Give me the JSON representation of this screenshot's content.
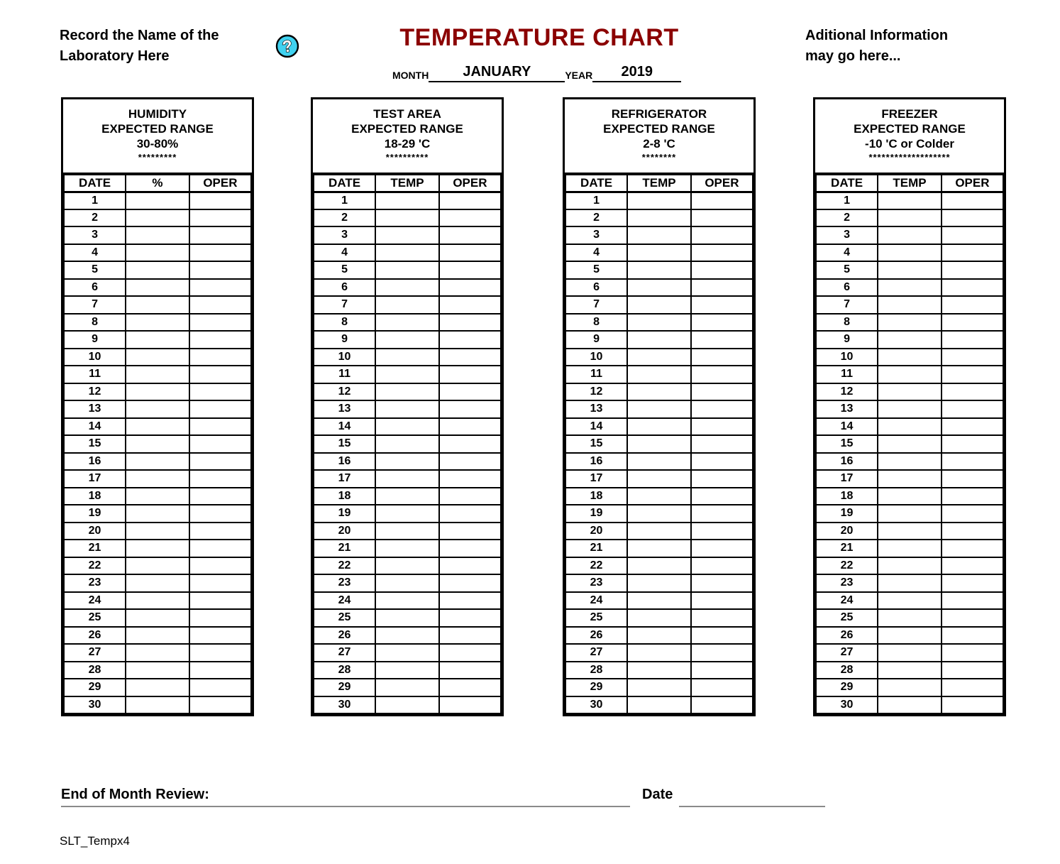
{
  "header": {
    "lab_name_line1": "Record the Name of the",
    "lab_name_line2": "Laboratory Here",
    "help_icon_glyph": "?",
    "title": "TEMPERATURE CHART",
    "month_label": "MONTH",
    "month_value": "JANUARY",
    "year_label": "YEAR",
    "year_value": "2019",
    "additional_info_line1": "Aditional Information",
    "additional_info_line2": "may go here..."
  },
  "colors": {
    "title_red": "#8B0000",
    "help_icon_cyan": "#40D2F0",
    "footer_rule_gray": "#8a8a8a"
  },
  "dates": [
    1,
    2,
    3,
    4,
    5,
    6,
    7,
    8,
    9,
    10,
    11,
    12,
    13,
    14,
    15,
    16,
    17,
    18,
    19,
    20,
    21,
    22,
    23,
    24,
    25,
    26,
    27,
    28,
    29,
    30
  ],
  "tables": [
    {
      "id": "humidity",
      "name": "HUMIDITY",
      "range_label": "EXPECTED RANGE",
      "range": "30-80%",
      "asterisks": "*********",
      "columns": [
        "DATE",
        "%",
        "OPER"
      ]
    },
    {
      "id": "test-area",
      "name": "TEST AREA",
      "range_label": "EXPECTED RANGE",
      "range": "18-29 'C",
      "asterisks": "**********",
      "columns": [
        "DATE",
        "TEMP",
        "OPER"
      ]
    },
    {
      "id": "refrigerator",
      "name": "REFRIGERATOR",
      "range_label": "EXPECTED RANGE",
      "range": "2-8 'C",
      "asterisks": "********",
      "columns": [
        "DATE",
        "TEMP",
        "OPER"
      ]
    },
    {
      "id": "freezer",
      "name": "FREEZER",
      "range_label": "EXPECTED RANGE",
      "range": "-10 'C or Colder",
      "asterisks": "*******************",
      "columns": [
        "DATE",
        "TEMP",
        "OPER"
      ]
    }
  ],
  "footer": {
    "review_label": "End of Month Review:",
    "date_label": "Date",
    "doc_id": "SLT_Tempx4"
  }
}
